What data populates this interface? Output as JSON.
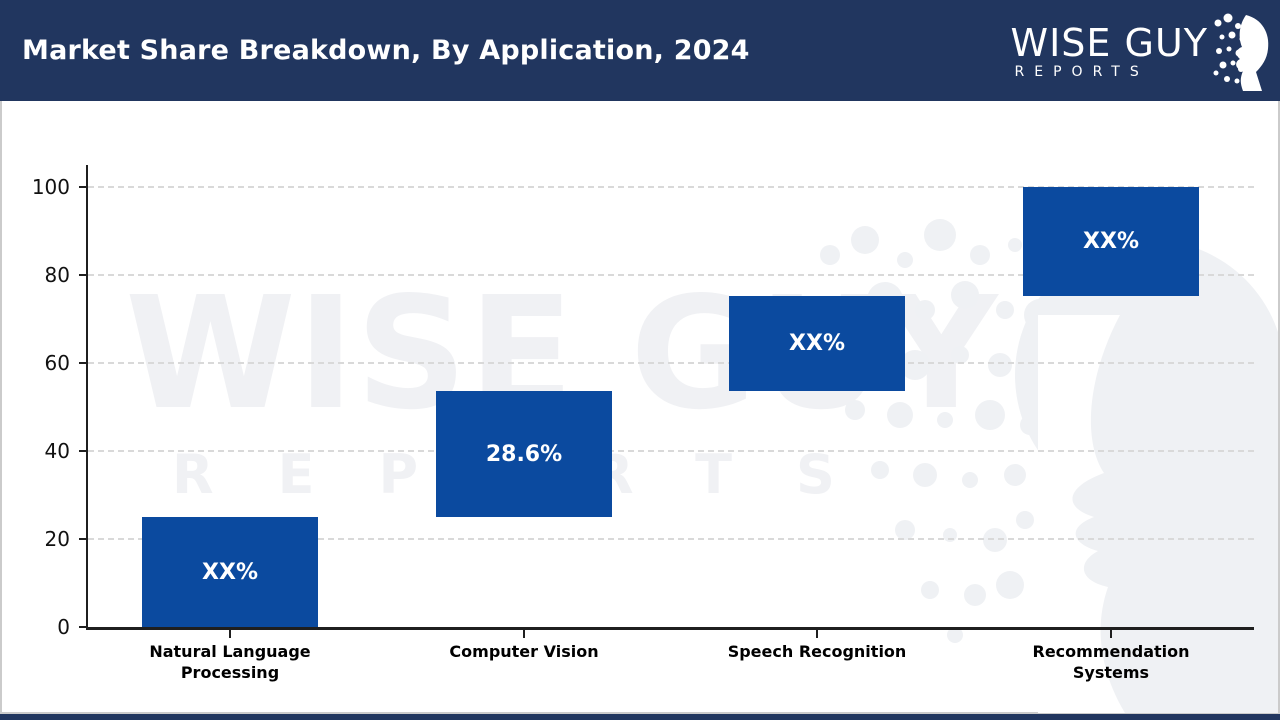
{
  "header": {
    "title": "Market Share Breakdown, By Application, 2024",
    "logo": {
      "line1": "WISE GUY",
      "line2": "REPORTS"
    }
  },
  "watermark": {
    "line1": "WISE GUY",
    "line2": "REPORTS"
  },
  "chart_data": {
    "type": "bar",
    "subtype": "waterfall",
    "title": "Market Share Breakdown, By Application, 2024",
    "categories": [
      "Natural Language\nProcessing",
      "Computer Vision",
      "Speech Recognition",
      "Recommendation\nSystems"
    ],
    "segments": [
      {
        "category": "Natural Language Processing",
        "start": 0,
        "end": 25,
        "label": "XX%"
      },
      {
        "category": "Computer Vision",
        "start": 25,
        "end": 53.6,
        "label": "28.6%"
      },
      {
        "category": "Speech Recognition",
        "start": 53.6,
        "end": 75.2,
        "label": "XX%"
      },
      {
        "category": "Recommendation Systems",
        "start": 75.2,
        "end": 100,
        "label": "XX%"
      }
    ],
    "ylim": [
      0,
      100
    ],
    "yticks": [
      0,
      20,
      40,
      60,
      80,
      100
    ],
    "xlabel": "",
    "ylabel": "",
    "grid": "horizontal-dashed",
    "legend": "none"
  },
  "colors": {
    "header_bg": "#21365f",
    "bar": "#0b4a9f",
    "bar_label": "#ffffff",
    "axis": "#1f1f1f",
    "grid": "#d9d9d9",
    "watermark": "#f0f1f4",
    "card_border": "#cbcbcb"
  }
}
